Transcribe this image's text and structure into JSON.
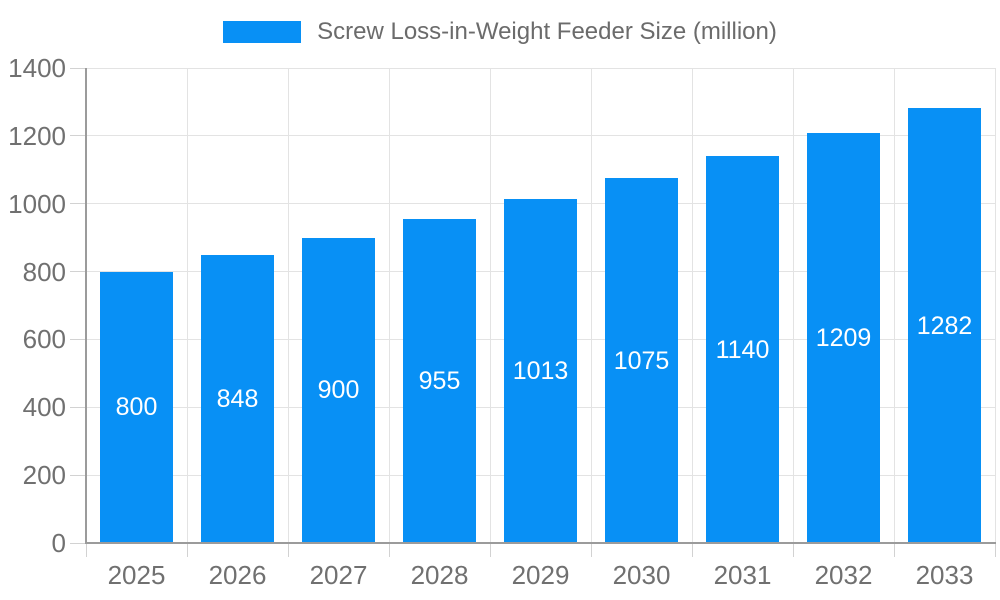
{
  "chart_data": {
    "type": "bar",
    "title": "Screw Loss-in-Weight Feeder Size (million)",
    "categories": [
      "2025",
      "2026",
      "2027",
      "2028",
      "2029",
      "2030",
      "2031",
      "2032",
      "2033"
    ],
    "values": [
      800,
      848,
      900,
      955,
      1013,
      1075,
      1140,
      1209,
      1282
    ],
    "value_labels": [
      "800",
      "848",
      "900",
      "955",
      "1013",
      "1075",
      "1140",
      "1209",
      "1282"
    ],
    "xlabel": "",
    "ylabel": "",
    "ylim": [
      0,
      1400
    ],
    "ytick_step": 200,
    "ytick_labels": [
      "0",
      "200",
      "400",
      "600",
      "800",
      "1000",
      "1200",
      "1400"
    ],
    "grid": true,
    "legend_position": "top-center",
    "bar_color": "#0890f5",
    "value_label_color": "#ffffff"
  }
}
